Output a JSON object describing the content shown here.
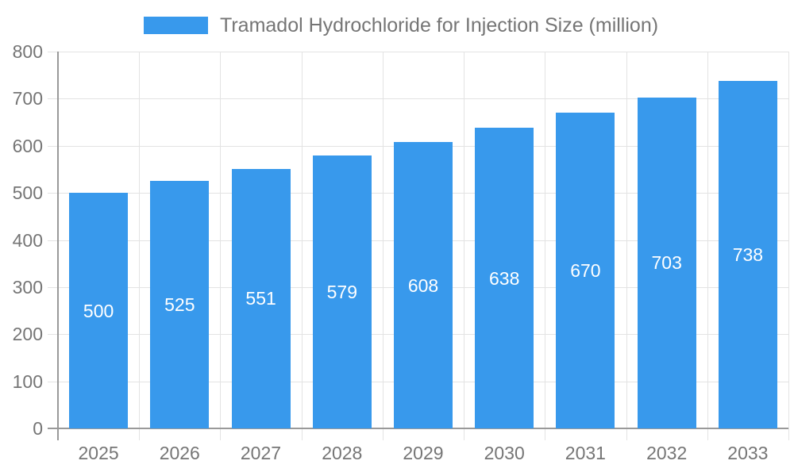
{
  "legend": {
    "label": "Tramadol Hydrochloride for Injection Size (million)"
  },
  "chart_data": {
    "type": "bar",
    "title": "Tramadol Hydrochloride for Injection Size (million)",
    "categories": [
      "2025",
      "2026",
      "2027",
      "2028",
      "2029",
      "2030",
      "2031",
      "2032",
      "2033"
    ],
    "values": [
      500,
      525,
      551,
      579,
      608,
      638,
      670,
      703,
      738
    ],
    "series": [
      {
        "name": "Tramadol Hydrochloride for Injection Size (million)",
        "values": [
          500,
          525,
          551,
          579,
          608,
          638,
          670,
          703,
          738
        ]
      }
    ],
    "xlabel": "",
    "ylabel": "",
    "ylim": [
      0,
      800
    ],
    "ytick_step": 100,
    "grid": true,
    "legend_position": "top",
    "colors": {
      "bar": "#3899EC",
      "value_label": "#FFFFFF",
      "axis_text": "#757575",
      "axis_line": "#999999",
      "gridline": "#E3E3E3"
    }
  }
}
